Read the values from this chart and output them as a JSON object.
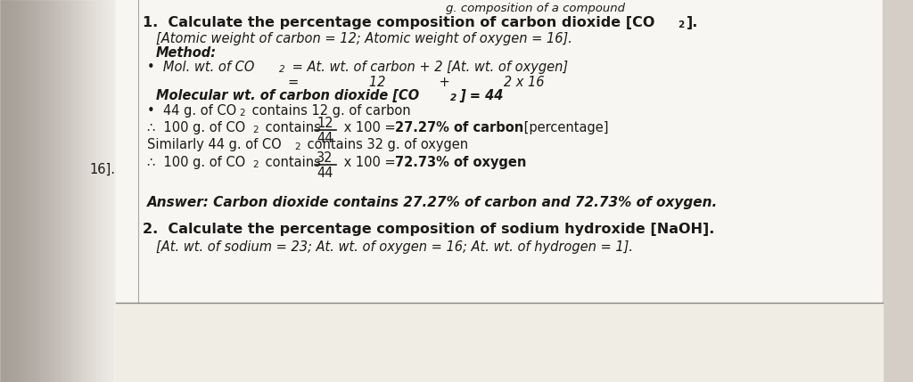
{
  "page_bg": "#f0ede8",
  "main_bg": "#f5f3ee",
  "section2_bg": "#f0ede8",
  "left_shadow_color": "#c8c3bc",
  "text_color": "#1a1a1a",
  "line_color": "#888880",
  "top_partial": "g. composition of a compound",
  "q1_main": "1.  Calculate the percentage composition of carbon dioxide [CO",
  "q1_sub": "2",
  "q1_end": "].",
  "atomic_wts": "[Atomic weight of carbon = 12; Atomic weight of oxygen = 16].",
  "method": "Method:",
  "mol_wt_start": "•  Mol. wt. of CO",
  "mol_wt_rest": " = At. wt. of carbon + 2 [At. wt. of oxygen]",
  "mol_wt_eq": "=                 12             +             2 x 16",
  "mol_wt_result_start": "Molecular wt. of carbon dioxide [CO",
  "mol_wt_result_end": "] = 44",
  "contains_c_start": "•  44 g. of CO",
  "contains_c_end": " contains 12 g. of carbon",
  "therefore_c_start": "∴  100 g. of CO",
  "therefore_c_mid": " contains",
  "frac1_num": "12",
  "frac1_den": "44",
  "therefore_c_mid2": " x 100 = ",
  "therefore_c_bold": "27.27% of carbon",
  "therefore_c_end": " [percentage]",
  "similarly_start": "Similarly 44 g. of CO",
  "similarly_end": " contains 32 g. of oxygen",
  "therefore_o_start": "∴  100 g. of CO",
  "therefore_o_mid": " contains",
  "frac2_num": "32",
  "frac2_den": "44",
  "therefore_o_mid2": " x 100 = ",
  "therefore_o_bold": "72.73% of oxygen",
  "answer": "Answer: Carbon dioxide contains 27.27% of carbon and 72.73% of oxygen.",
  "q2_main": "2.  Calculate the percentage composition of sodium hydroxide [NaOH].",
  "q2_sub": "     [At. wt. of sodium = 23; At. wt. of oxygen = 16; At. wt. of hydrogen = 1].",
  "page_num": "16].",
  "fs": 10.5,
  "fs_bold": 11.5,
  "fs_sub": 7.5,
  "fs_answer": 11.0
}
